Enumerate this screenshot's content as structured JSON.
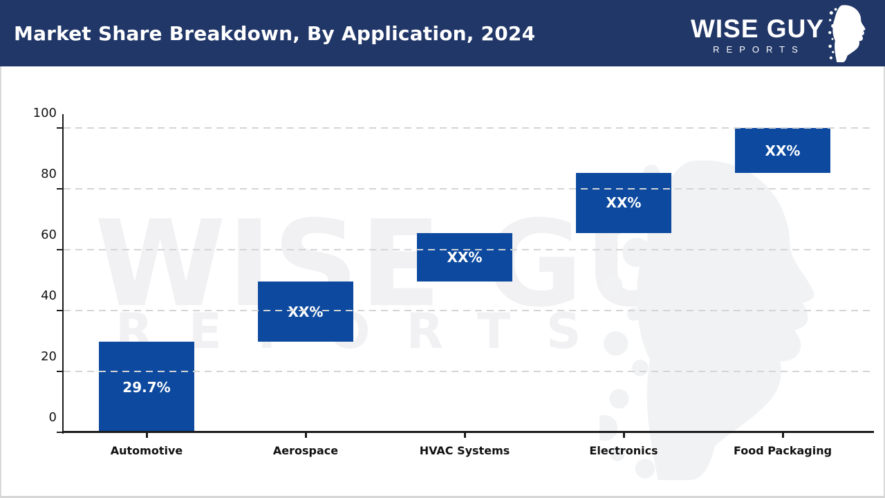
{
  "header": {
    "title": "Market Share Breakdown, By Application, 2024",
    "brand": {
      "line1": "WISE GUY",
      "line2": "REPORTS"
    },
    "bg_color": "#213768"
  },
  "watermark": {
    "line1": "WISE GUY",
    "line2": "REPORTS"
  },
  "chart_data": {
    "type": "bar",
    "subtype": "waterfall",
    "title": "Market Share Breakdown, By Application, 2024",
    "categories": [
      "Automotive",
      "Aerospace",
      "HVAC Systems",
      "Electronics",
      "Food Packaging"
    ],
    "segments": [
      {
        "start": 0,
        "end": 29.7
      },
      {
        "start": 29.7,
        "end": 49.5
      },
      {
        "start": 49.5,
        "end": 65.5
      },
      {
        "start": 65.5,
        "end": 85.2
      },
      {
        "start": 85.2,
        "end": 100
      }
    ],
    "values": [
      29.7,
      19.8,
      16.0,
      19.7,
      14.8
    ],
    "bar_labels": [
      "29.7%",
      "XX%",
      "XX%",
      "XX%",
      "XX%"
    ],
    "xlabel": "",
    "ylabel": "",
    "ylim": [
      0,
      100
    ],
    "yticks": [
      0,
      20,
      40,
      60,
      80,
      100
    ],
    "grid": "dashed-horizontal-over-bars",
    "legend": "none",
    "bar_color": "#0d4a9f",
    "bar_label_color": "#ffffff",
    "axis_color": "#1a1a1a",
    "grid_color": "#d4d4d6"
  }
}
